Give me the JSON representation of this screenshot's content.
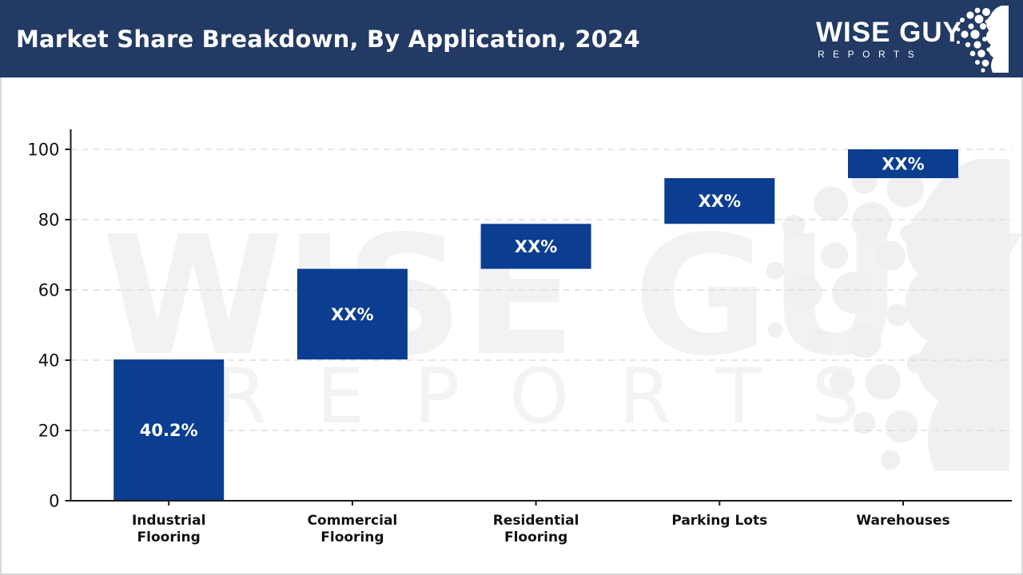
{
  "header": {
    "title": "Market Share Breakdown, By Application, 2024",
    "brand": {
      "line1": "WISE GUY",
      "line2": "REPORTS"
    }
  },
  "watermark": {
    "line1": "WISE GUY",
    "line2": "REPORTS"
  },
  "colors": {
    "header_bg": "#223a64",
    "bar": "#0b3d91",
    "grid": "#dedede",
    "axis": "#1a1a1a",
    "bar_label": "#ffffff",
    "frame_border": "#d9d9d9",
    "watermark": "#f2f2f4"
  },
  "chart_data": {
    "type": "bar",
    "subtype": "waterfall",
    "title": "Market Share Breakdown, By Application, 2024",
    "categories": [
      "Industrial\nFlooring",
      "Commercial\nFlooring",
      "Residential\nFlooring",
      "Parking Lots",
      "Warehouses"
    ],
    "segments": [
      {
        "category": "Industrial Flooring",
        "start": 0,
        "end": 40.2,
        "label": "40.2%"
      },
      {
        "category": "Commercial Flooring",
        "start": 40.2,
        "end": 66.0,
        "label": "XX%"
      },
      {
        "category": "Residential Flooring",
        "start": 66.0,
        "end": 78.8,
        "label": "XX%"
      },
      {
        "category": "Parking Lots",
        "start": 78.8,
        "end": 91.8,
        "label": "XX%"
      },
      {
        "category": "Warehouses",
        "start": 91.8,
        "end": 100,
        "label": "XX%"
      }
    ],
    "yticks": [
      0,
      20,
      40,
      60,
      80,
      100
    ],
    "ylim": [
      0,
      100
    ],
    "xlabel": "",
    "ylabel": "",
    "grid": "horizontal-dashed",
    "legend": "none"
  }
}
